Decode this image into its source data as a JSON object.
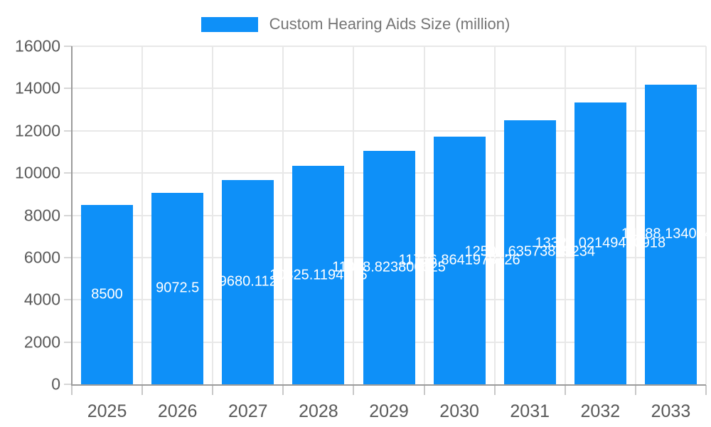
{
  "legend": {
    "label": "Custom Hearing Aids Size (million)",
    "swatch_color": "#0e90f8"
  },
  "chart_data": {
    "type": "bar",
    "title": "Custom Hearing Aids Size (million)",
    "categories": [
      "2025",
      "2026",
      "2027",
      "2028",
      "2029",
      "2030",
      "2031",
      "2032",
      "2033"
    ],
    "values": [
      8500,
      9072.5,
      9680.112,
      10325.1194875,
      11048.823800625,
      11736.8641978126,
      12505.63573845234,
      13324.02149430918,
      14188.1340043
    ],
    "value_labels": [
      "8500",
      "9072.5",
      "9680.112",
      "10325.1194875",
      "11048.823800625",
      "11736.8641978126",
      "12505.63573845234",
      "13324.02149430918",
      "14188.1340043"
    ],
    "xlabel": "",
    "ylabel": "",
    "ylim": [
      0,
      16000
    ],
    "yticks": [
      0,
      2000,
      4000,
      6000,
      8000,
      10000,
      12000,
      14000,
      16000
    ],
    "grid": true,
    "legend_position": "top",
    "bar_color": "#0e90f8",
    "value_label_color": "#ffffff",
    "axis_text_color": "#595959"
  }
}
